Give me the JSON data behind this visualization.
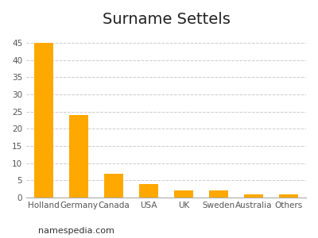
{
  "title": "Surname Settels",
  "categories": [
    "Holland",
    "Germany",
    "Canada",
    "USA",
    "UK",
    "Sweden",
    "Australia",
    "Others"
  ],
  "values": [
    45,
    24,
    7,
    4,
    2,
    2,
    1,
    1
  ],
  "bar_color": "#FFA800",
  "ylim": [
    0,
    48
  ],
  "yticks": [
    0,
    5,
    10,
    15,
    20,
    25,
    30,
    35,
    40,
    45
  ],
  "grid_color": "#cccccc",
  "background_color": "#ffffff",
  "title_fontsize": 14,
  "tick_fontsize": 7.5,
  "footer_text": "namespedia.com",
  "footer_fontsize": 8,
  "bar_width": 0.55
}
